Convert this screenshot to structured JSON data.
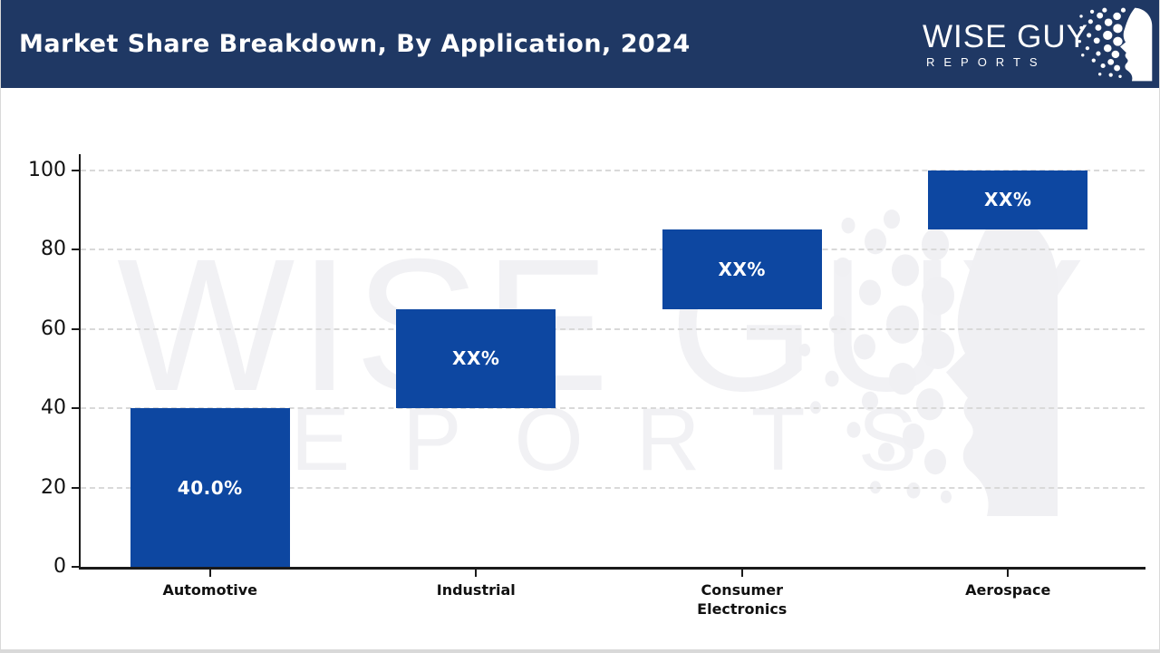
{
  "header": {
    "title": "Market Share Breakdown, By Application, 2024",
    "bg_color": "#1f3864",
    "logo": {
      "line1": "WISE GUY",
      "line2": "REPORTS"
    }
  },
  "watermark": {
    "line1": "WISE GUY",
    "line2": "REPORTS",
    "color": "#f1f1f4"
  },
  "chart_data": {
    "type": "bar",
    "subtype": "stacked-waterfall",
    "title": "Market Share Breakdown, By Application, 2024",
    "categories": [
      "Automotive",
      "Industrial",
      "Consumer\nElectronics",
      "Aerospace"
    ],
    "bars": [
      {
        "category": "Automotive",
        "start": 0,
        "end": 40,
        "label": "40.0%"
      },
      {
        "category": "Industrial",
        "start": 40,
        "end": 65,
        "label": "XX%"
      },
      {
        "category": "Consumer Electronics",
        "start": 65,
        "end": 85,
        "label": "XX%"
      },
      {
        "category": "Aerospace",
        "start": 85,
        "end": 100,
        "label": "XX%"
      }
    ],
    "segment_values_pct": [
      40,
      25,
      20,
      15
    ],
    "yticks": [
      0,
      20,
      40,
      60,
      80,
      100
    ],
    "ylim": [
      0,
      104
    ],
    "xlabel": "",
    "ylabel": "",
    "grid": "horizontal-dashed",
    "legend": "none",
    "bar_color": "#0d47a1",
    "bar_label_color": "#ffffff",
    "axis_color": "#1a1a1a",
    "grid_color": "#d9d9d9"
  }
}
